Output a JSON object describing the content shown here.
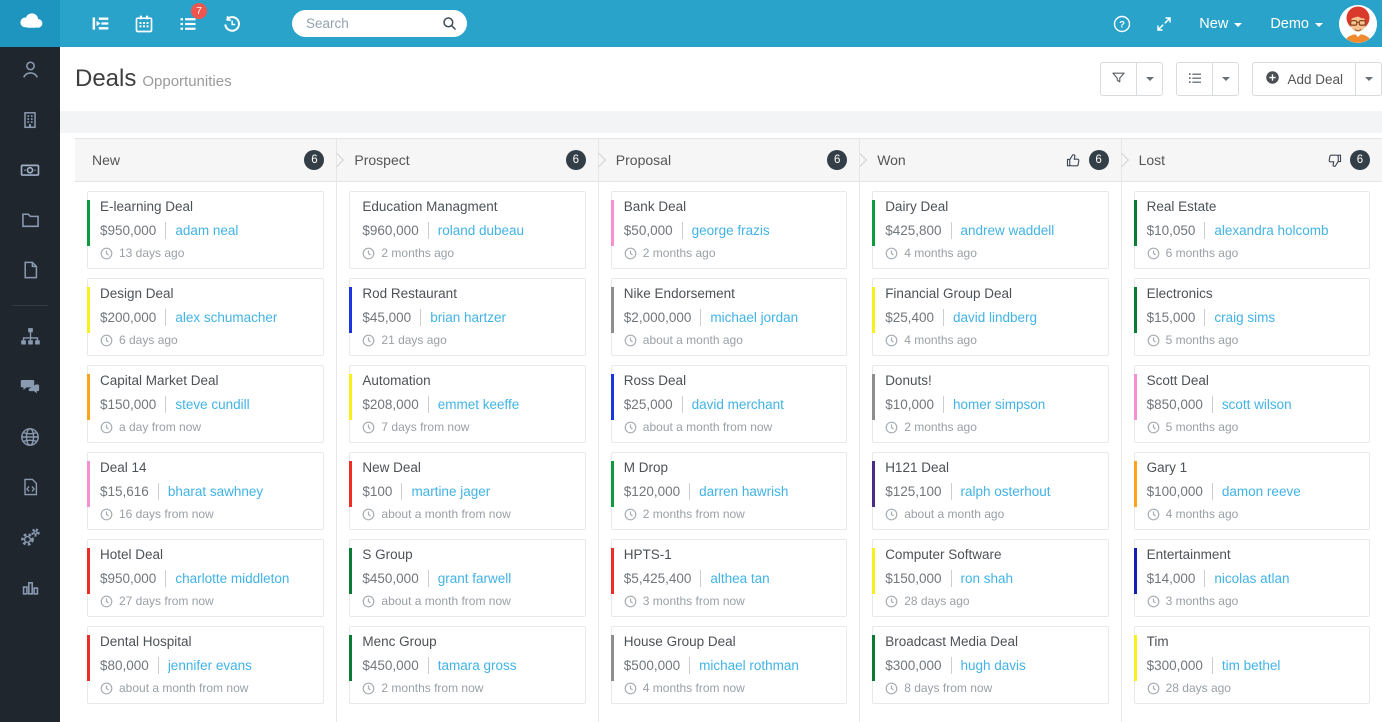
{
  "topbar": {
    "search_placeholder": "Search",
    "tasks_badge": "7",
    "new_label": "New",
    "user_label": "Demo"
  },
  "header": {
    "title": "Deals",
    "subtitle": "Opportunities",
    "add_deal_label": "Add Deal"
  },
  "sidebar": {
    "items": [
      "contacts",
      "accounts",
      "deals",
      "folders",
      "documents",
      "org-structure",
      "chat",
      "web",
      "code-files",
      "settings",
      "reports"
    ]
  },
  "colors": {
    "topbar": "#2aa3cb",
    "logo_bg": "#1e95be",
    "sidebar": "#20262e",
    "link_blue": "#42b3e6",
    "badge_red": "#f0544c",
    "count_badge": "#333e46"
  },
  "board": {
    "columns": [
      {
        "name": "New",
        "count": "6",
        "header_icon": null,
        "cards": [
          {
            "title": "E-learning Deal",
            "amount": "$950,000",
            "contact": "adam neal",
            "time": "13 days ago",
            "stripe": "#0c9b3f"
          },
          {
            "title": "Design Deal",
            "amount": "$200,000",
            "contact": "alex schumacher",
            "time": "6 days ago",
            "stripe": "#f8ef1d"
          },
          {
            "title": "Capital Market Deal",
            "amount": "$150,000",
            "contact": "steve cundill",
            "time": "a day from now",
            "stripe": "#ffa21c"
          },
          {
            "title": "Deal 14",
            "amount": "$15,616",
            "contact": "bharat sawhney",
            "time": "16 days from now",
            "stripe": "#f78fd3"
          },
          {
            "title": "Hotel Deal",
            "amount": "$950,000",
            "contact": "charlotte middleton",
            "time": "27 days from now",
            "stripe": "#ee2d24"
          },
          {
            "title": "Dental Hospital",
            "amount": "$80,000",
            "contact": "jennifer evans",
            "time": "about a month from now",
            "stripe": "#ee2d24"
          }
        ]
      },
      {
        "name": "Prospect",
        "count": "6",
        "header_icon": null,
        "cards": [
          {
            "title": "Education Managment",
            "amount": "$960,000",
            "contact": "roland dubeau",
            "time": "2 months ago",
            "stripe": null
          },
          {
            "title": "Rod Restaurant",
            "amount": "$45,000",
            "contact": "brian hartzer",
            "time": "21 days ago",
            "stripe": "#1b35df"
          },
          {
            "title": "Automation",
            "amount": "$208,000",
            "contact": "emmet keeffe",
            "time": "7 days from now",
            "stripe": "#f8ef1d"
          },
          {
            "title": "New Deal",
            "amount": "$100",
            "contact": "martine jager",
            "time": "about a month from now",
            "stripe": "#ee2d24"
          },
          {
            "title": "S Group",
            "amount": "$450,000",
            "contact": "grant farwell",
            "time": "about a month from now",
            "stripe": "#0b7c33"
          },
          {
            "title": "Menc Group",
            "amount": "$450,000",
            "contact": "tamara gross",
            "time": "2 months from now",
            "stripe": "#0b7c33"
          }
        ]
      },
      {
        "name": "Proposal",
        "count": "6",
        "header_icon": null,
        "cards": [
          {
            "title": "Bank Deal",
            "amount": "$50,000",
            "contact": "george frazis",
            "time": "2 months ago",
            "stripe": "#f78fd3"
          },
          {
            "title": "Nike Endorsement",
            "amount": "$2,000,000",
            "contact": "michael jordan",
            "time": "about a month ago",
            "stripe": "#8e8e8e"
          },
          {
            "title": "Ross Deal",
            "amount": "$25,000",
            "contact": "david merchant",
            "time": "about a month from now",
            "stripe": "#1b35df"
          },
          {
            "title": "M Drop",
            "amount": "$120,000",
            "contact": "darren hawrish",
            "time": "2 months from now",
            "stripe": "#0c9b3f"
          },
          {
            "title": "HPTS-1",
            "amount": "$5,425,400",
            "contact": "althea tan",
            "time": "3 months from now",
            "stripe": "#ee2d24"
          },
          {
            "title": "House Group Deal",
            "amount": "$500,000",
            "contact": "michael rothman",
            "time": "4 months from now",
            "stripe": "#8e8e8e"
          }
        ]
      },
      {
        "name": "Won",
        "count": "6",
        "header_icon": "thumbs-up-icon",
        "cards": [
          {
            "title": "Dairy Deal",
            "amount": "$425,800",
            "contact": "andrew waddell",
            "time": "4 months ago",
            "stripe": "#0c9b3f"
          },
          {
            "title": "Financial Group Deal",
            "amount": "$25,400",
            "contact": "david lindberg",
            "time": "4 months ago",
            "stripe": "#f8ef1d"
          },
          {
            "title": "Donuts!",
            "amount": "$10,000",
            "contact": "homer simpson",
            "time": "2 months ago",
            "stripe": "#8e8e8e"
          },
          {
            "title": "H121 Deal",
            "amount": "$125,100",
            "contact": "ralph osterhout",
            "time": "about a month ago",
            "stripe": "#4c2b87"
          },
          {
            "title": "Computer Software",
            "amount": "$150,000",
            "contact": "ron shah",
            "time": "28 days ago",
            "stripe": "#f8ef1d"
          },
          {
            "title": "Broadcast Media Deal",
            "amount": "$300,000",
            "contact": "hugh davis",
            "time": "8 days from now",
            "stripe": "#0b7c33"
          }
        ]
      },
      {
        "name": "Lost",
        "count": "6",
        "header_icon": "thumbs-down-icon",
        "cards": [
          {
            "title": "Real Estate",
            "amount": "$10,050",
            "contact": "alexandra holcomb",
            "time": "6 months ago",
            "stripe": "#0b7c33"
          },
          {
            "title": "Electronics",
            "amount": "$15,000",
            "contact": "craig sims",
            "time": "5 months ago",
            "stripe": "#0b7c33"
          },
          {
            "title": "Scott Deal",
            "amount": "$850,000",
            "contact": "scott wilson",
            "time": "5 months ago",
            "stripe": "#f78fd3"
          },
          {
            "title": "Gary 1",
            "amount": "$100,000",
            "contact": "damon reeve",
            "time": "4 months ago",
            "stripe": "#ffa21c"
          },
          {
            "title": "Entertainment",
            "amount": "$14,000",
            "contact": "nicolas atlan",
            "time": "3 months ago",
            "stripe": "#131fb5"
          },
          {
            "title": "Tim",
            "amount": "$300,000",
            "contact": "tim bethel",
            "time": "28 days ago",
            "stripe": "#f8ef1d"
          }
        ]
      }
    ]
  }
}
